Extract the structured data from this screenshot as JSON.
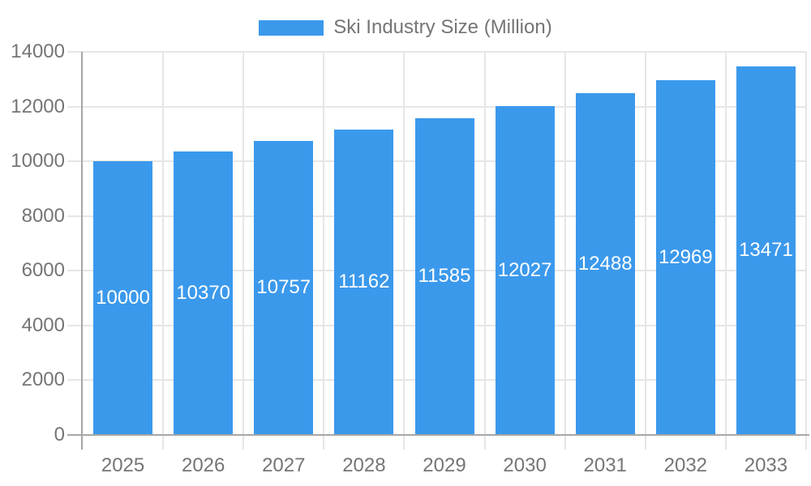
{
  "chart_data": {
    "type": "bar",
    "title": "Ski Industry Size (Million)",
    "legend": {
      "label": "Ski Industry Size (Million)",
      "position": "top"
    },
    "categories": [
      "2025",
      "2026",
      "2027",
      "2028",
      "2029",
      "2030",
      "2031",
      "2032",
      "2033"
    ],
    "values": [
      10000,
      10370,
      10757,
      11162,
      11585,
      12027,
      12488,
      12969,
      13471
    ],
    "xlabel": "",
    "ylabel": "",
    "ylim": [
      0,
      14000
    ],
    "yticks": [
      0,
      2000,
      4000,
      6000,
      8000,
      10000,
      12000,
      14000
    ],
    "grid": true,
    "bar_labels_visible": true
  },
  "colors": {
    "bar": "#3B99EC",
    "grid": "#e6e6e6",
    "axis": "#a6a6a6",
    "tick_text": "#757575",
    "bar_label_text": "#ffffff",
    "background": "#ffffff"
  }
}
